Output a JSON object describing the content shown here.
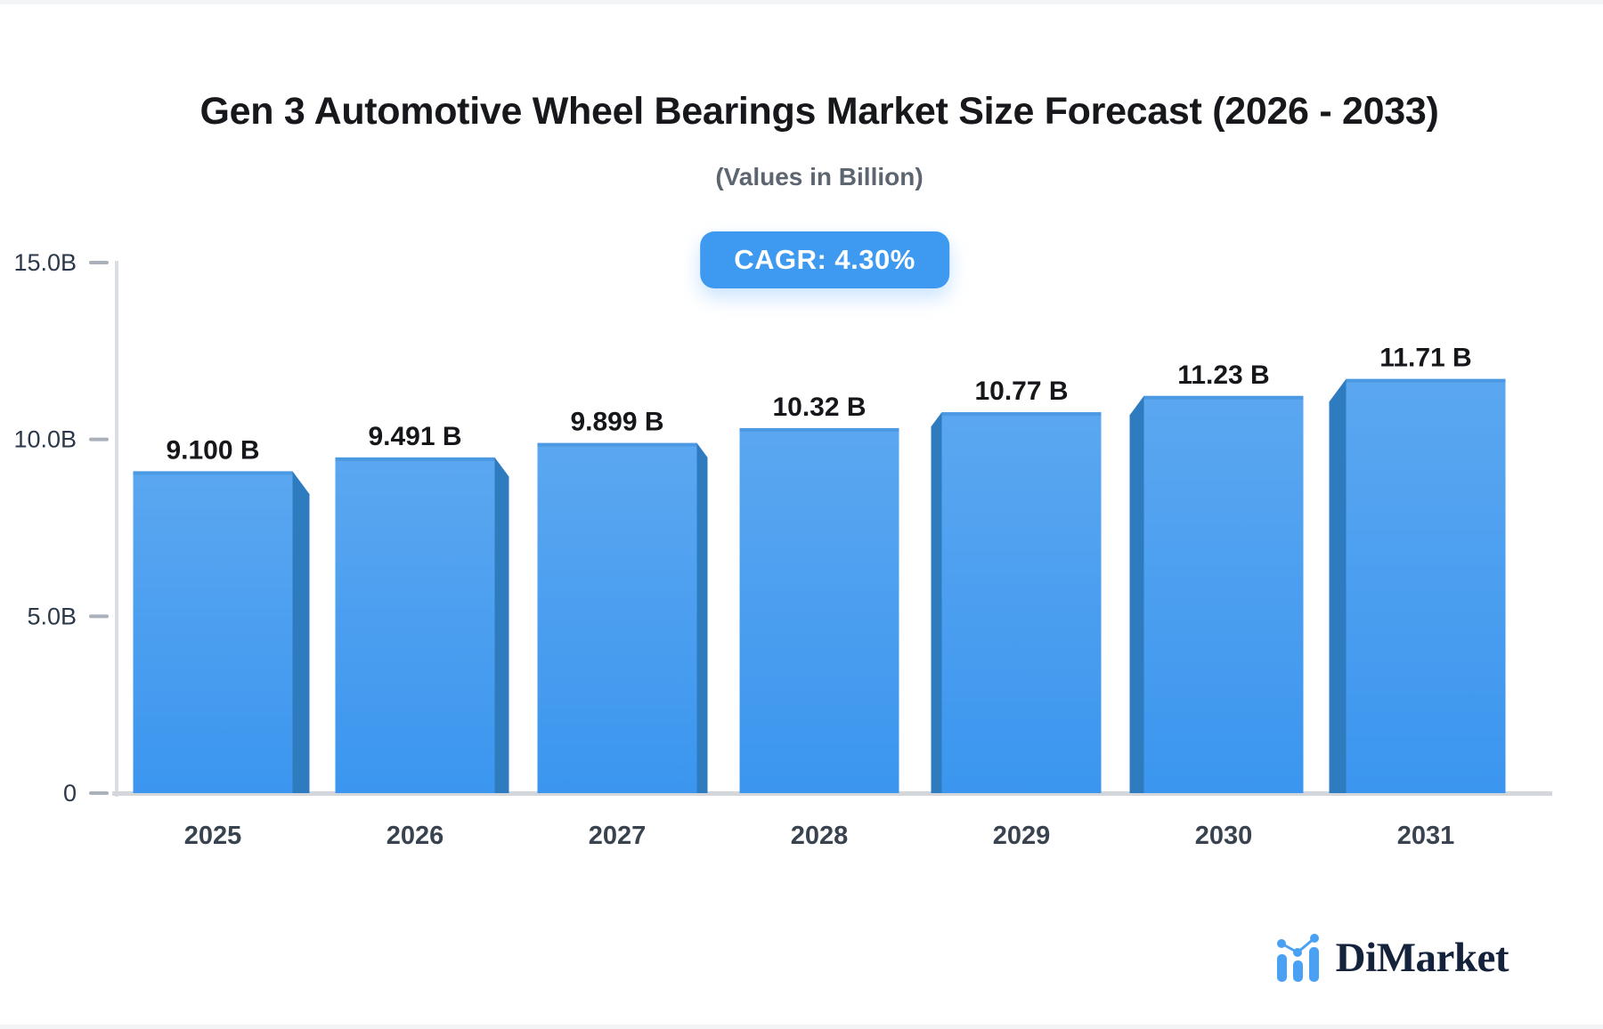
{
  "page": {
    "title": "Gen 3 Automotive Wheel Bearings Market Size Forecast (2026 - 2033)",
    "subtitle": "(Values in Billion)"
  },
  "badge": {
    "label": "CAGR: 4.30%"
  },
  "chart_data": {
    "type": "bar",
    "style": "3d-perspective-columns",
    "title": "Gen 3 Automotive Wheel Bearings Market Size Forecast (2026 - 2033)",
    "subtitle": "(Values in Billion)",
    "categories": [
      "2025",
      "2026",
      "2027",
      "2028",
      "2029",
      "2030",
      "2031"
    ],
    "values": [
      9.1,
      9.491,
      9.899,
      10.32,
      10.77,
      11.23,
      11.71
    ],
    "value_labels": [
      "9.100 B",
      "9.491 B",
      "9.899 B",
      "10.32 B",
      "10.77 B",
      "11.23 B",
      "11.71 B"
    ],
    "xlabel": "",
    "ylabel": "",
    "ylim": [
      0,
      15
    ],
    "yticks": [
      {
        "value": 0,
        "label": "0"
      },
      {
        "value": 5,
        "label": "5.0B"
      },
      {
        "value": 10,
        "label": "10.0B"
      },
      {
        "value": 15,
        "label": "15.0B"
      }
    ],
    "grid": false,
    "legend": false
  },
  "logo": {
    "text": "DiMarket",
    "icon": "bar-chart-sparkline-icon"
  },
  "colors": {
    "bar_face_top": "#5BA7F0",
    "bar_face_bottom": "#3B96EF",
    "bar_top_edge": "#4A97E1",
    "bar_side": "#2E7BC0",
    "badge_bg": "#3D9AF0",
    "badge_text": "#FFFFFF",
    "axis_line": "#DADDE2",
    "baseline": "#D3D7DC",
    "tick_dash": "#ABB1BA",
    "tick_label": "#2C3849",
    "year_label": "#39424F",
    "value_label": "#15171A",
    "title": "#17181C",
    "subtitle": "#5C6570",
    "logo_text": "#15223B",
    "logo_icon": "#4AA1F4"
  }
}
